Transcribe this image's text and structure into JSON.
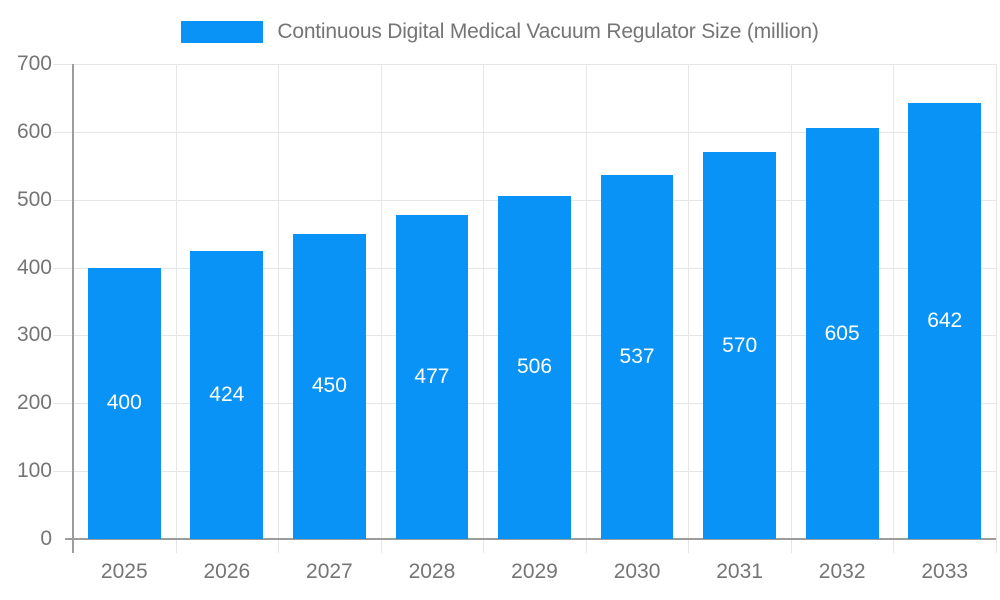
{
  "chart_data": {
    "type": "bar",
    "title": "Continuous Digital Medical Vacuum Regulator Size (million)",
    "categories": [
      "2025",
      "2026",
      "2027",
      "2028",
      "2029",
      "2030",
      "2031",
      "2032",
      "2033"
    ],
    "values": [
      400,
      424,
      450,
      477,
      506,
      537,
      570,
      605,
      642
    ],
    "series": [
      {
        "name": "Continuous Digital Medical Vacuum Regulator Size (million)",
        "values": [
          400,
          424,
          450,
          477,
          506,
          537,
          570,
          605,
          642
        ]
      }
    ],
    "xlabel": "",
    "ylabel": "",
    "ylim": [
      0,
      700
    ],
    "y_ticks": [
      0,
      100,
      200,
      300,
      400,
      500,
      600,
      700
    ],
    "grid": true,
    "legend_position": "top",
    "bar_value_labels_shown": true,
    "colors": {
      "bar": "#0A93F7",
      "text": "#757575",
      "axis_line": "#9C9C9C",
      "gridline": "#E6E6E6",
      "bar_label": "#FFFFFF",
      "background": "#FFFFFF"
    }
  }
}
